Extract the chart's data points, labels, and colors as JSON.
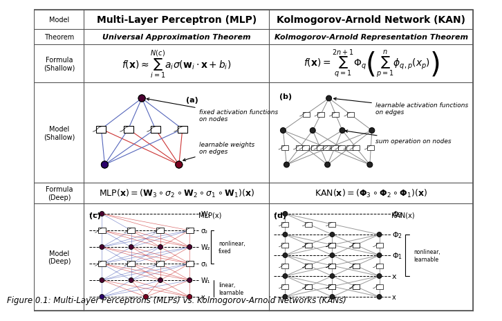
{
  "title": "Figure 0.1: Multi-Layer Perceptrons (MLPs) vs. Kolmogorov-Arnold Networks (KANs)",
  "col_headers": [
    "Model",
    "Multi-Layer Perceptron (MLP)",
    "Kolmogorov-Arnold Network (KAN)"
  ],
  "row_labels": [
    "Model",
    "Theorem",
    "Formula\n(Shallow)",
    "Model\n(Shallow)",
    "Formula\n(Deep)",
    "Model\n(Deep)"
  ],
  "theorem_mlp": "Universal Approximation Theorem",
  "theorem_kan": "Kolmogorov-Arnold Representation Theorem",
  "formula_shallow_mlp": "$f(\\mathbf{x}) \\approx \\sum_{i=1}^{N(c)} a_i \\sigma(\\mathbf{w}_i \\cdot \\mathbf{x} + b_i)$",
  "formula_shallow_kan": "$f(\\mathbf{x}) = \\sum_{q=1}^{2n+1} \\Phi_q \\left(\\sum_{p=1}^{n} \\phi_{q,p}(x_p)\\right)$",
  "formula_deep_mlp": "$\\mathrm{MLP}(\\mathbf{x}) = (\\mathbf{W}_3 \\circ \\sigma_2 \\circ \\mathbf{W}_2 \\circ \\sigma_1 \\circ \\mathbf{W}_1)(\\mathbf{x})$",
  "formula_deep_kan": "$\\mathrm{KAN}(\\mathbf{x}) = (\\mathbf{\\Phi}_3 \\circ \\mathbf{\\Phi}_2 \\circ \\mathbf{\\Phi}_1)(\\mathbf{x})$",
  "bg_color": "#f5f5f0",
  "grid_color": "#888888",
  "node_color_top": "#4a0030",
  "node_color_bottom_left": "#2a006a",
  "node_color_bottom_right": "#7a0020",
  "edge_color_blue": "#5566bb",
  "edge_color_red": "#cc3333",
  "kan_edge_color": "#888888",
  "kan_node_color": "#222222"
}
